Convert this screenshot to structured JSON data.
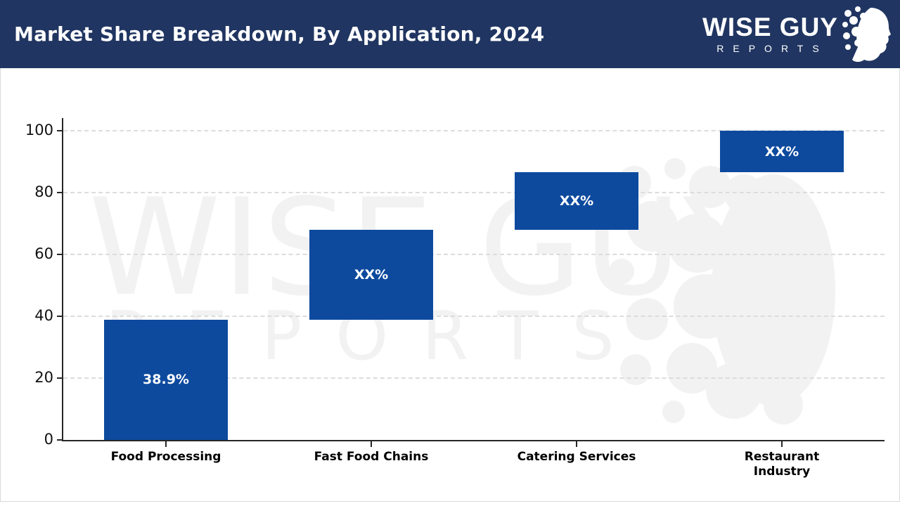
{
  "header": {
    "title": "Market Share Breakdown, By Application, 2024",
    "bg_color": "#203561",
    "logo": {
      "line1": "WISE GUY",
      "line2": "REPORTS",
      "icon": "dotted-face-logo-icon"
    }
  },
  "watermark": {
    "line1": "WISE GUY",
    "line2": "REPORTS",
    "color": "#f2f2f2"
  },
  "chart_data": {
    "type": "bar",
    "subtype": "waterfall",
    "title": "Market Share Breakdown, By Application, 2024",
    "xlabel": "",
    "ylabel": "",
    "ylim": [
      0,
      100
    ],
    "yticks": [
      0,
      20,
      40,
      60,
      80,
      100
    ],
    "grid": "horizontal-dashed",
    "legend": "none",
    "bar_color": "#0d4a9e",
    "bar_label_color": "#ffffff",
    "categories": [
      "Food Processing",
      "Fast Food Chains",
      "Catering Services",
      "Restaurant\nIndustry"
    ],
    "segments": [
      {
        "category": "Food Processing",
        "start": 0,
        "end": 38.9,
        "label": "38.9%"
      },
      {
        "category": "Fast Food Chains",
        "start": 38.9,
        "end": 68,
        "label": "XX%"
      },
      {
        "category": "Catering Services",
        "start": 68,
        "end": 86.5,
        "label": "XX%"
      },
      {
        "category": "Restaurant Industry",
        "start": 86.5,
        "end": 100,
        "label": "XX%"
      }
    ]
  }
}
